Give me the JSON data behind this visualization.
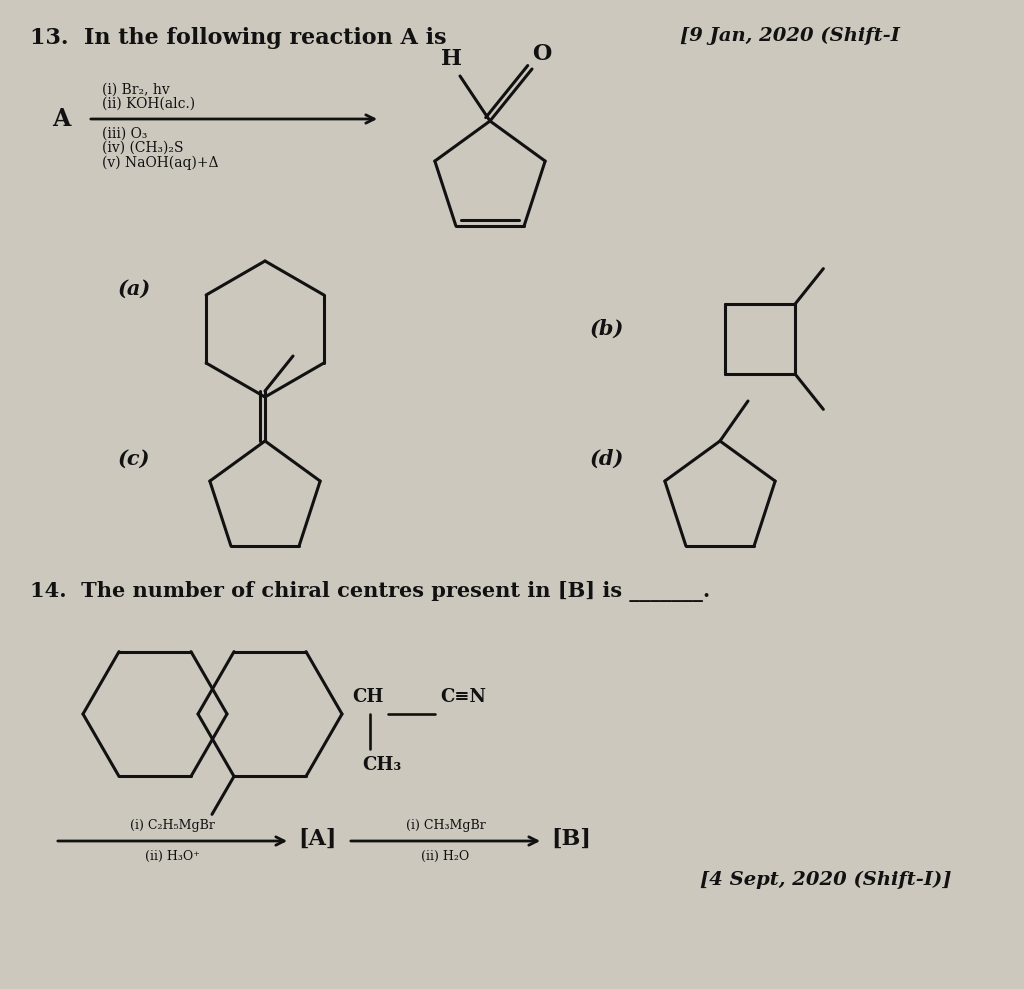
{
  "bg_color": "#cdc8be",
  "title_13": "13.  In the following reaction A is",
  "title_14": "14.  The number of chiral centres present in [B] is _______.",
  "ref_13": "[9 Jan, 2020 (Shift-I",
  "ref_14": "[4 Sept, 2020 (Shift-I)]",
  "text_color": "#111111",
  "line_color": "#111111",
  "line_width": 2.2
}
